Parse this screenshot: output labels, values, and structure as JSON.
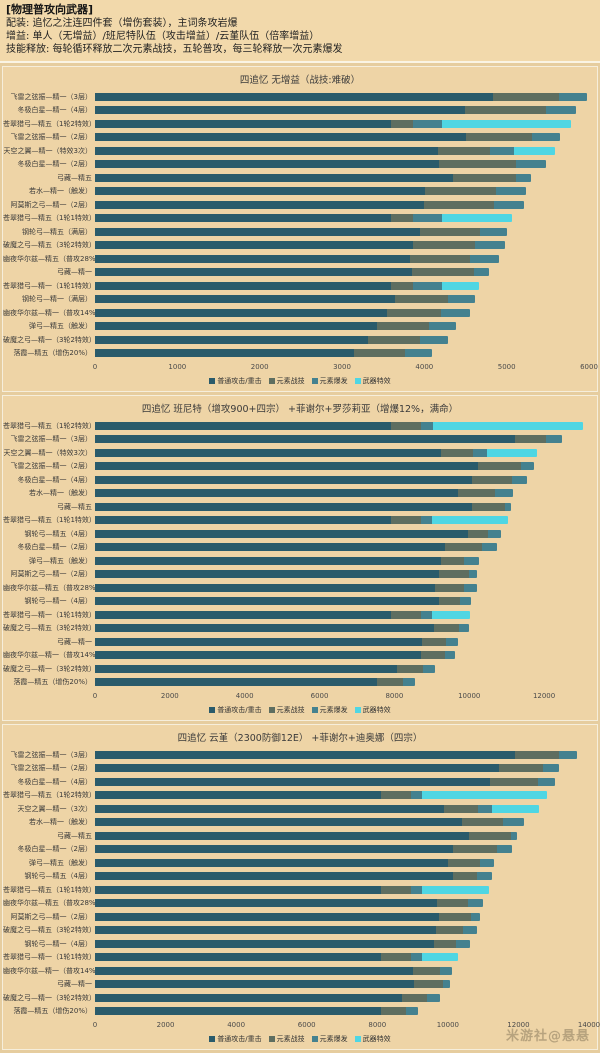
{
  "header": {
    "title": "[物理普攻向武器]",
    "line_build": "配装: 追忆之注连四件套（增伤套装），主词条攻岩爆",
    "line_buff": "增益: 单人（无增益）/班尼特队伍（攻击增益）/云堇队伍（倍率增益）",
    "line_rotation": "技能释放: 每轮循环释放二次元素战技，五轮普攻，每三轮释放一次元素爆发"
  },
  "legend": [
    "普通攻击/重击",
    "元素战技",
    "元素爆发",
    "武器特效"
  ],
  "legend_keys": [
    "normal-attack",
    "elemental-skill",
    "elemental-burst",
    "weapon-effect"
  ],
  "colors": [
    "#2a5b6b",
    "#5e6e60",
    "#44818f",
    "#4fd6e3"
  ],
  "watermark": "米游社@悬悬",
  "chart_data": [
    {
      "type": "bar",
      "stacked": true,
      "title": "四追忆 无增益（战技:难破）",
      "xlabel": "",
      "ylabel": "",
      "xlim": [
        0,
        6000
      ],
      "ticks": [
        0,
        1000,
        2000,
        3000,
        4000,
        5000,
        6000
      ],
      "legend_position": "bottom",
      "grid": false,
      "rows": [
        {
          "label": "飞雷之弦振—精一（3层）",
          "values": [
            4830,
            810,
            330,
            0
          ]
        },
        {
          "label": "冬极白星—精一（4层）",
          "values": [
            4490,
            990,
            360,
            0
          ]
        },
        {
          "label": "苍翠猎弓—精五（1轮2特效）",
          "values": [
            3590,
            270,
            350,
            1570
          ]
        },
        {
          "label": "飞雷之弦振—精一（2层）",
          "values": [
            4500,
            810,
            340,
            0
          ]
        },
        {
          "label": "天空之翼—精一（特效3次）",
          "values": [
            4160,
            640,
            290,
            500
          ]
        },
        {
          "label": "冬极白星—精一（2层）",
          "values": [
            4180,
            930,
            370,
            0
          ]
        },
        {
          "label": "弓藏—精五",
          "values": [
            4350,
            760,
            190,
            0
          ]
        },
        {
          "label": "若水—精一（触发）",
          "values": [
            4010,
            860,
            370,
            0
          ]
        },
        {
          "label": "阿莫斯之弓—精一（2层）",
          "values": [
            4000,
            850,
            365,
            0
          ]
        },
        {
          "label": "苍翠猎弓—精五（1轮1特效）",
          "values": [
            3590,
            270,
            350,
            850
          ]
        },
        {
          "label": "钢轮弓—精五（满层）",
          "values": [
            3950,
            730,
            320,
            0
          ]
        },
        {
          "label": "破魔之弓—精五（3轮2特效）",
          "values": [
            3860,
            750,
            365,
            0
          ]
        },
        {
          "label": "幽夜华尔兹—精五（普攻28%）",
          "values": [
            3830,
            720,
            360,
            0
          ]
        },
        {
          "label": "弓藏—精一",
          "values": [
            3850,
            750,
            190,
            0
          ]
        },
        {
          "label": "苍翠猎弓—精一（1轮1特效）",
          "values": [
            3590,
            270,
            350,
            460
          ]
        },
        {
          "label": "钢轮弓—精一（满层）",
          "values": [
            3640,
            650,
            320,
            0
          ]
        },
        {
          "label": "幽夜华尔兹—精一（普攻14%）",
          "values": [
            3550,
            650,
            350,
            0
          ]
        },
        {
          "label": "弹弓—精五（触发）",
          "values": [
            3420,
            640,
            330,
            0
          ]
        },
        {
          "label": "破魔之弓—精一（3轮2特效）",
          "values": [
            3310,
            640,
            335,
            0
          ]
        },
        {
          "label": "落霞—精五（增伤20%）",
          "values": [
            3150,
            610,
            330,
            0
          ]
        }
      ]
    },
    {
      "type": "bar",
      "stacked": true,
      "title": "四追忆 班尼特（增攻900+四宗） +菲谢尔+罗莎莉亚（增爆12%，满命）",
      "xlabel": "",
      "ylabel": "",
      "xlim": [
        0,
        13200
      ],
      "ticks": [
        0,
        2000,
        4000,
        6000,
        8000,
        10000,
        12000
      ],
      "legend_position": "bottom",
      "grid": false,
      "rows": [
        {
          "label": "苍翠猎弓—精五（1轮2特效）",
          "values": [
            7910,
            810,
            310,
            4010
          ]
        },
        {
          "label": "飞雷之弦振—精一（3层）",
          "values": [
            11210,
            840,
            430,
            0
          ]
        },
        {
          "label": "天空之翼—精一（特效3次）",
          "values": [
            9240,
            870,
            360,
            1340
          ]
        },
        {
          "label": "飞雷之弦振—精一（2层）",
          "values": [
            10240,
            1150,
            330,
            0
          ]
        },
        {
          "label": "冬极白星—精一（4层）",
          "values": [
            10080,
            1060,
            400,
            0
          ]
        },
        {
          "label": "若水—精一（触发）",
          "values": [
            9690,
            990,
            500,
            0
          ]
        },
        {
          "label": "弓藏—精五",
          "values": [
            10080,
            880,
            160,
            0
          ]
        },
        {
          "label": "苍翠猎弓—精五（1轮1特效）",
          "values": [
            7910,
            790,
            300,
            2030
          ]
        },
        {
          "label": "钢轮弓—精五（4层）",
          "values": [
            9980,
            510,
            360,
            0
          ]
        },
        {
          "label": "冬极白星—精一（2层）",
          "values": [
            9360,
            990,
            390,
            0
          ]
        },
        {
          "label": "弹弓—精五（触发）",
          "values": [
            9250,
            610,
            400,
            0
          ]
        },
        {
          "label": "阿莫斯之弓—精一（2层）",
          "values": [
            9180,
            820,
            220,
            0
          ]
        },
        {
          "label": "幽夜华尔兹—精五（普攻28%）",
          "values": [
            9080,
            780,
            360,
            0
          ]
        },
        {
          "label": "钢轮弓—精一（4层）",
          "values": [
            9200,
            550,
            290,
            0
          ]
        },
        {
          "label": "苍翠猎弓—精一（1轮1特效）",
          "values": [
            7910,
            790,
            300,
            1020
          ]
        },
        {
          "label": "破魔之弓—精五（3轮2特效）",
          "values": [
            9060,
            660,
            270,
            0
          ]
        },
        {
          "label": "弓藏—精一",
          "values": [
            8740,
            650,
            310,
            0
          ]
        },
        {
          "label": "幽夜华尔兹—精一（普攻14%）",
          "values": [
            8700,
            660,
            270,
            0
          ]
        },
        {
          "label": "破魔之弓—精一（3轮2特效）",
          "values": [
            8070,
            690,
            330,
            0
          ]
        },
        {
          "label": "落霞—精五（增伤20%）",
          "values": [
            7530,
            690,
            330,
            0
          ]
        }
      ]
    },
    {
      "type": "bar",
      "stacked": true,
      "title": "四追忆 云堇（2300防御12E） +菲谢尔+迪奥娜（四宗）",
      "xlabel": "",
      "ylabel": "",
      "xlim": [
        0,
        14000
      ],
      "ticks": [
        0,
        2000,
        4000,
        6000,
        8000,
        10000,
        12000,
        14000
      ],
      "legend_position": "bottom",
      "grid": false,
      "rows": [
        {
          "label": "飞雷之弦振—精一（3层）",
          "values": [
            11900,
            1260,
            500,
            0
          ]
        },
        {
          "label": "飞雷之弦振—精一（2层）",
          "values": [
            11450,
            1250,
            450,
            0
          ]
        },
        {
          "label": "冬极白星—精一（4层）",
          "values": [
            11200,
            1350,
            490,
            0
          ]
        },
        {
          "label": "苍翠猎弓—精五（1轮2特效）",
          "values": [
            8100,
            850,
            330,
            3530
          ]
        },
        {
          "label": "天空之翼—精一（3次）",
          "values": [
            9900,
            950,
            390,
            1350
          ]
        },
        {
          "label": "若水—精一（触发）",
          "values": [
            10400,
            1170,
            600,
            0
          ]
        },
        {
          "label": "弓藏—精五",
          "values": [
            10600,
            1180,
            190,
            0
          ]
        },
        {
          "label": "冬极白星—精一（2层）",
          "values": [
            10150,
            1230,
            450,
            0
          ]
        },
        {
          "label": "弹弓—精五（触发）",
          "values": [
            10000,
            900,
            420,
            0
          ]
        },
        {
          "label": "钢轮弓—精五（4层）",
          "values": [
            10150,
            680,
            410,
            0
          ]
        },
        {
          "label": "苍翠猎弓—精五（1轮1特效）",
          "values": [
            8100,
            850,
            330,
            1900
          ]
        },
        {
          "label": "幽夜华尔兹—精五（普攻28%）",
          "values": [
            9700,
            880,
            410,
            0
          ]
        },
        {
          "label": "阿莫斯之弓—精一（2层）",
          "values": [
            9750,
            900,
            250,
            0
          ]
        },
        {
          "label": "破魔之弓—精五（3轮2特效）",
          "values": [
            9650,
            790,
            380,
            0
          ]
        },
        {
          "label": "钢轮弓—精一（4层）",
          "values": [
            9600,
            620,
            400,
            0
          ]
        },
        {
          "label": "苍翠猎弓—精一（1轮1特效）",
          "values": [
            8100,
            850,
            330,
            1000
          ]
        },
        {
          "label": "幽夜华尔兹—精一（普攻14%）",
          "values": [
            9000,
            780,
            330,
            0
          ]
        },
        {
          "label": "弓藏—精一",
          "values": [
            9050,
            820,
            190,
            0
          ]
        },
        {
          "label": "破魔之弓—精一（3轮2特效）",
          "values": [
            8700,
            710,
            370,
            0
          ]
        },
        {
          "label": "落霞—精五（增伤20%）",
          "values": [
            8100,
            720,
            340,
            0
          ]
        }
      ]
    }
  ]
}
